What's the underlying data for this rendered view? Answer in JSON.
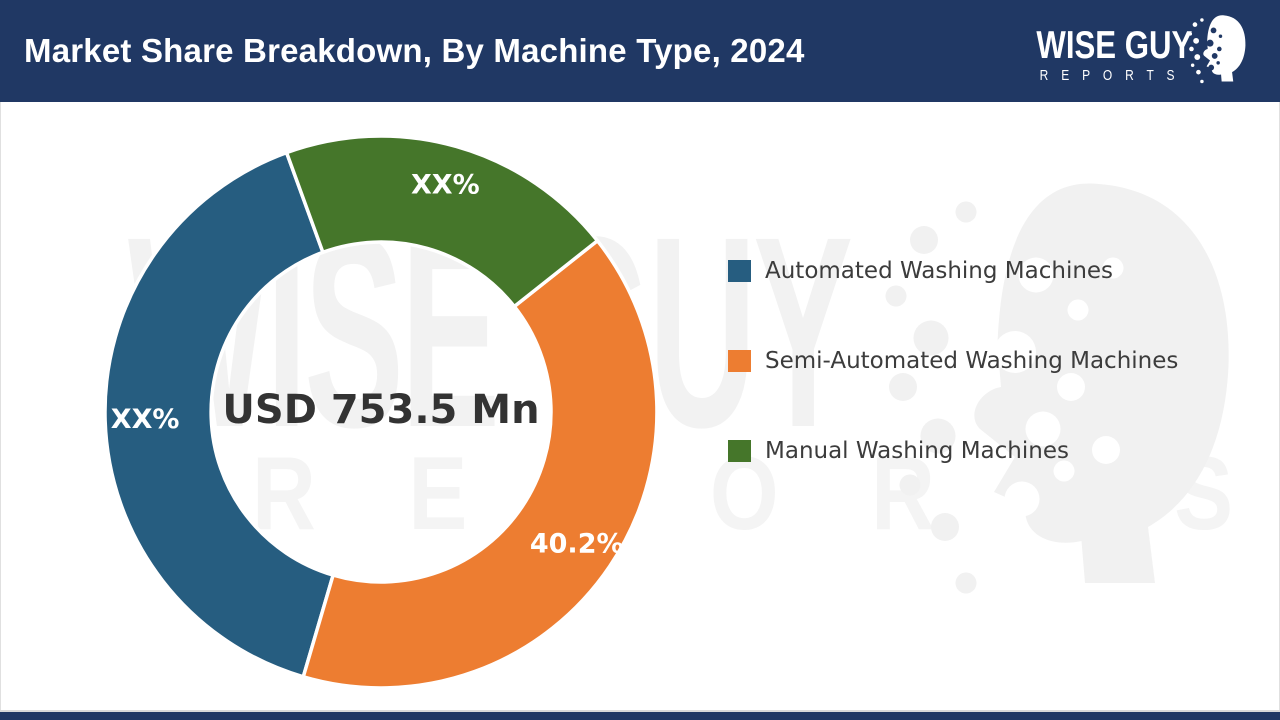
{
  "header": {
    "title": "Market Share Breakdown, By Machine Type, 2024",
    "logo": {
      "line1": "WISE GUY",
      "line2": "R E P O R T S"
    }
  },
  "watermark": {
    "line1": "WISE GUY",
    "line2": "R E P O R T S"
  },
  "chart_data": {
    "type": "pie",
    "donut": true,
    "title": "Market Share Breakdown, By Machine Type, 2024",
    "center_total": "USD 753.5 Mn",
    "start_angle_deg": 110,
    "direction": "counterclockwise",
    "legend_position": "right",
    "segments": [
      {
        "name": "Automated Washing Machines",
        "value_pct": 39.9,
        "label": "XX%",
        "color": "#265d80"
      },
      {
        "name": "Semi-Automated Washing Machines",
        "value_pct": 40.2,
        "label": "40.2%",
        "color": "#ed7d31"
      },
      {
        "name": "Manual Washing Machines",
        "value_pct": 19.9,
        "label": "XX%",
        "color": "#45762a"
      }
    ]
  },
  "colors": {
    "header_bg": "#203864",
    "footer_bg": "#203864",
    "divider": "#d9d9d9",
    "watermark": "#f2f2f2",
    "legend_text": "#3c3c3c",
    "center_text": "#333333"
  }
}
